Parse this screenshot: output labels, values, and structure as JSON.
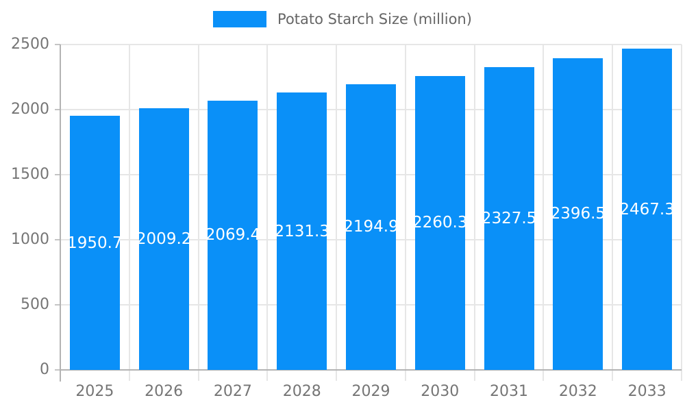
{
  "chart_data": {
    "type": "bar",
    "title": "Potato Starch Size (million)",
    "categories": [
      "2025",
      "2026",
      "2027",
      "2028",
      "2029",
      "2030",
      "2031",
      "2032",
      "2033"
    ],
    "values": [
      1950.7,
      2009.2,
      2069.4,
      2131.3,
      2194.9,
      2260.3,
      2327.5,
      2396.5,
      2467.3
    ],
    "value_labels": [
      "1950.7",
      "2009.2",
      "2069.4",
      "2131.3",
      "2194.9",
      "2260.3",
      "2327.5",
      "2396.5",
      "2467.3"
    ],
    "ylim": [
      0,
      2500
    ],
    "yticks": [
      0,
      500,
      1000,
      1500,
      2000,
      2500
    ],
    "ytick_labels": [
      "0",
      "500",
      "1000",
      "1500",
      "2000",
      "2500"
    ],
    "grid": true,
    "legend_position": "top",
    "colors": {
      "bar": "#0a90f8",
      "value_label": "#ffffff",
      "axis_text": "#757575",
      "title_text": "#666666",
      "gridline": "#e6e6e6",
      "axis_line": "#b3b3b3",
      "tick": "#c4c4c4"
    }
  }
}
